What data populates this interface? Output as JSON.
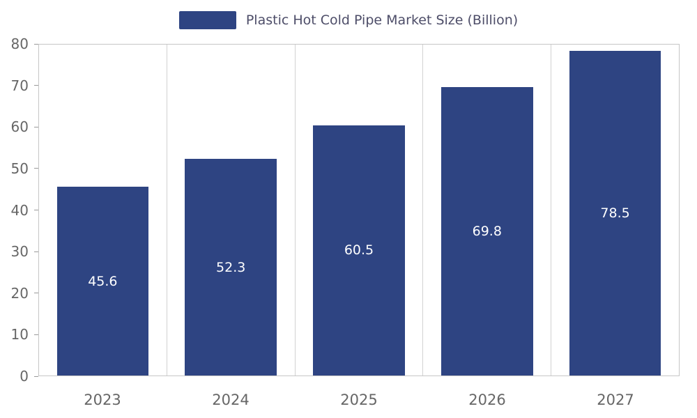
{
  "legend": {
    "label": "Plastic Hot Cold Pipe Market Size (Billion)",
    "swatch_color": "#2e4482"
  },
  "chart_data": {
    "type": "bar",
    "title": "Plastic Hot Cold Pipe Market Size (Billion)",
    "categories": [
      "2023",
      "2024",
      "2025",
      "2026",
      "2027"
    ],
    "values": [
      45.6,
      52.3,
      60.5,
      69.8,
      78.5
    ],
    "xlabel": "",
    "ylabel": "",
    "ylim": [
      0,
      80
    ],
    "yticks": [
      0,
      10,
      20,
      30,
      40,
      50,
      60,
      70,
      80
    ],
    "grid": "vertical-category-split-lines",
    "legend_position": "top-center",
    "bar_color": "#2e4482",
    "value_label_color": "#ffffff",
    "axis_label_color": "#666666",
    "border_color": "#c6c6c6"
  }
}
